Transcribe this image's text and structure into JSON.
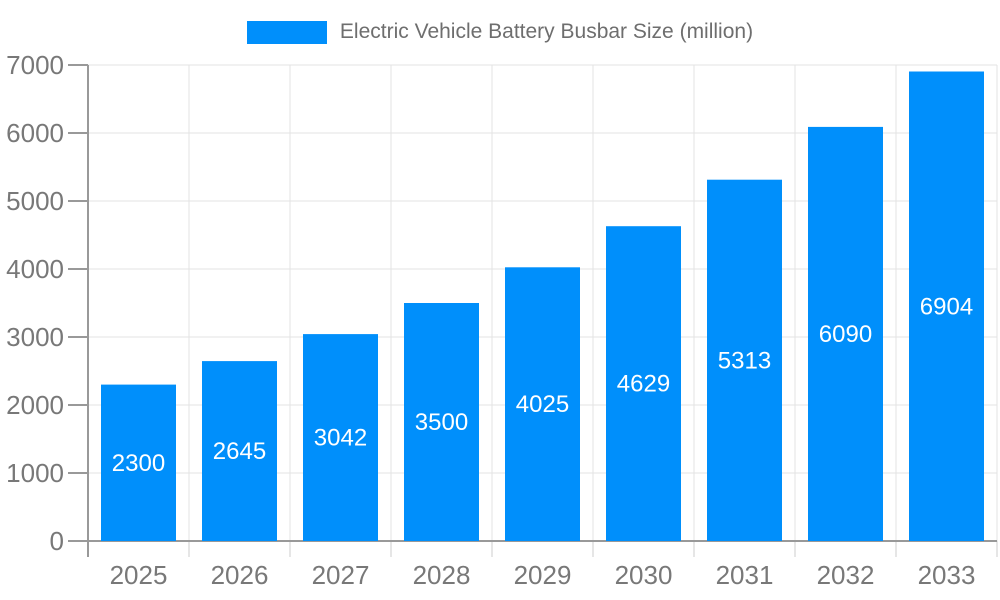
{
  "legend": {
    "label": "Electric Vehicle Battery Busbar Size (million)"
  },
  "colors": {
    "bar": "#008FFB",
    "grid": "#e3e3e3",
    "axis": "#999999",
    "category_tick": "#cccccc",
    "tick_label": "#787878",
    "legend_label": "#6e6e6e",
    "bar_label": "#ffffff",
    "background": "#ffffff"
  },
  "chart_data": {
    "type": "bar",
    "title": "Electric Vehicle Battery Busbar Size (million)",
    "categories": [
      "2025",
      "2026",
      "2027",
      "2028",
      "2029",
      "2030",
      "2031",
      "2032",
      "2033"
    ],
    "series": [
      {
        "name": "Electric Vehicle Battery Busbar Size (million)",
        "values": [
          2300,
          2645,
          3042,
          3500,
          4025,
          4629,
          5313,
          6090,
          6904
        ]
      }
    ],
    "xlabel": "",
    "ylabel": "",
    "ylim": [
      0,
      7000
    ],
    "yticks": [
      0,
      1000,
      2000,
      3000,
      4000,
      5000,
      6000,
      7000
    ],
    "grid": true,
    "legend_position": "top",
    "bar_value_labels": "inside-center"
  }
}
